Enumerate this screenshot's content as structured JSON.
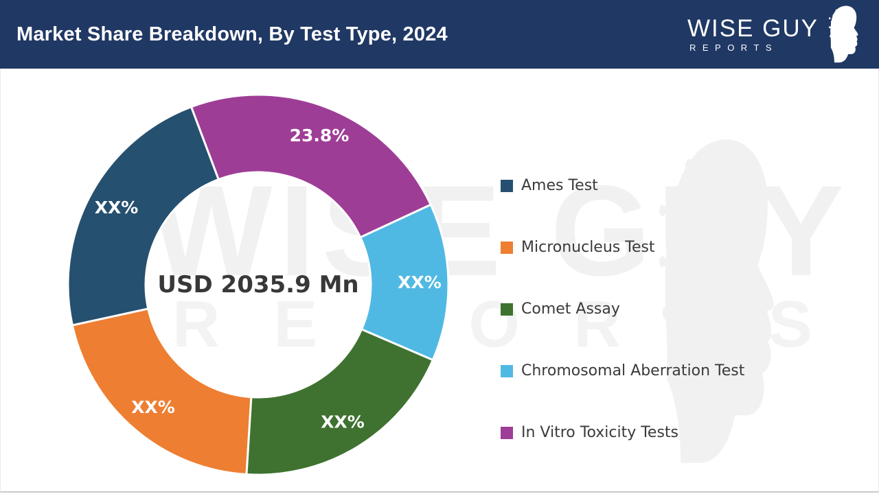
{
  "header": {
    "title": "Market Share Breakdown, By Test Type, 2024",
    "logo": {
      "line1": "WISE GUY",
      "line2": "REPORTS"
    }
  },
  "watermark": {
    "line1": "WISE GUY",
    "line2": "REPORTS"
  },
  "chart_data": {
    "type": "pie",
    "subtype": "donut",
    "title": "Market Share Breakdown, By Test Type, 2024",
    "center_label": "USD 2035.9 Mn",
    "legend_position": "right",
    "start_angle_deg": 110.6,
    "direction": "counterclockwise",
    "slices": [
      {
        "name": "Ames Test",
        "label": "XX%",
        "value_pct": 22.7,
        "color": "#26506f"
      },
      {
        "name": "Micronucleus Test",
        "label": "XX%",
        "value_pct": 20.6,
        "color": "#ee7e32"
      },
      {
        "name": "Comet Assay",
        "label": "XX%",
        "value_pct": 19.5,
        "color": "#3f7230"
      },
      {
        "name": "Chromosomal Aberration Test",
        "label": "XX%",
        "value_pct": 13.4,
        "color": "#4fb9e3"
      },
      {
        "name": "In Vitro Toxicity Tests",
        "label": "23.8%",
        "value_pct": 23.8,
        "color": "#9e3d96"
      }
    ]
  },
  "colors": {
    "header_bg": "#203864",
    "title_text": "#ffffff",
    "center_text": "#383838",
    "legend_text": "#3a3a3a",
    "watermark": "#f1f1f1",
    "slice_divider": "#ffffff"
  }
}
